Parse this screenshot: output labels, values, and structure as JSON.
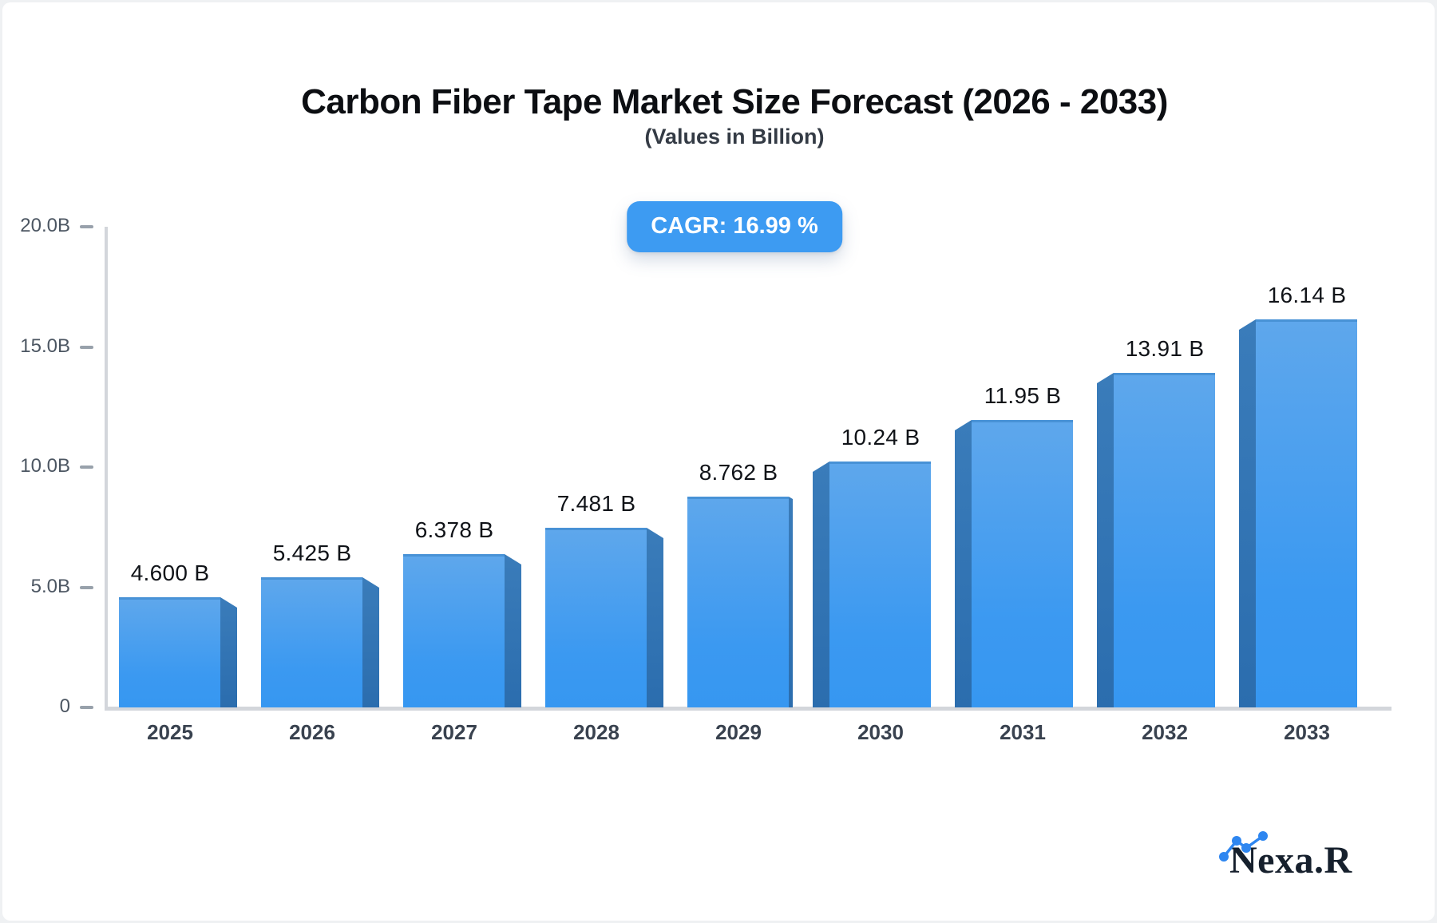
{
  "page": {
    "background_color": "#eff1f3",
    "card_color": "#ffffff"
  },
  "header": {
    "title": "Carbon Fiber Tape Market Size Forecast (2026 - 2033)",
    "subtitle": "(Values in Billion)",
    "cagr_badge": "CAGR: 16.99 %"
  },
  "chart_data": {
    "type": "bar",
    "title": "Carbon Fiber Tape Market Size Forecast (2026 - 2033)",
    "subtitle": "(Values in Billion)",
    "annotation": "CAGR: 16.99 %",
    "categories": [
      "2025",
      "2026",
      "2027",
      "2028",
      "2029",
      "2030",
      "2031",
      "2032",
      "2033"
    ],
    "values": [
      4.6,
      5.425,
      6.378,
      7.481,
      8.762,
      10.24,
      11.95,
      13.91,
      16.14
    ],
    "value_labels": [
      "4.600 B",
      "5.425 B",
      "6.378 B",
      "7.481 B",
      "8.762 B",
      "10.24 B",
      "11.95 B",
      "13.91 B",
      "16.14 B"
    ],
    "unit": "Billion",
    "ylim": [
      0,
      20
    ],
    "ytick_values": [
      0,
      5,
      10,
      15,
      20
    ],
    "ytick_labels": [
      "0",
      "5.0B",
      "10.0B",
      "15.0B",
      "20.0B"
    ],
    "grid": "off",
    "legend": "none",
    "bar_style": "3d",
    "colors": {
      "bar_face_top": "#5ea7ec",
      "bar_face_bottom": "#3697f1",
      "bar_side": "#2d71b2",
      "bar_top_edge": "#4892d6",
      "axis": "#d3d6db",
      "tick": "#98a1ab",
      "value_label": "#101318",
      "category_label": "#39424f",
      "badge_background": "#3d9bf2",
      "badge_text": "#ffffff"
    }
  },
  "logo": {
    "text": "Nexa.R",
    "icon": "sparkline-icon",
    "icon_color": "#2e86f0",
    "text_color": "#16202d"
  }
}
